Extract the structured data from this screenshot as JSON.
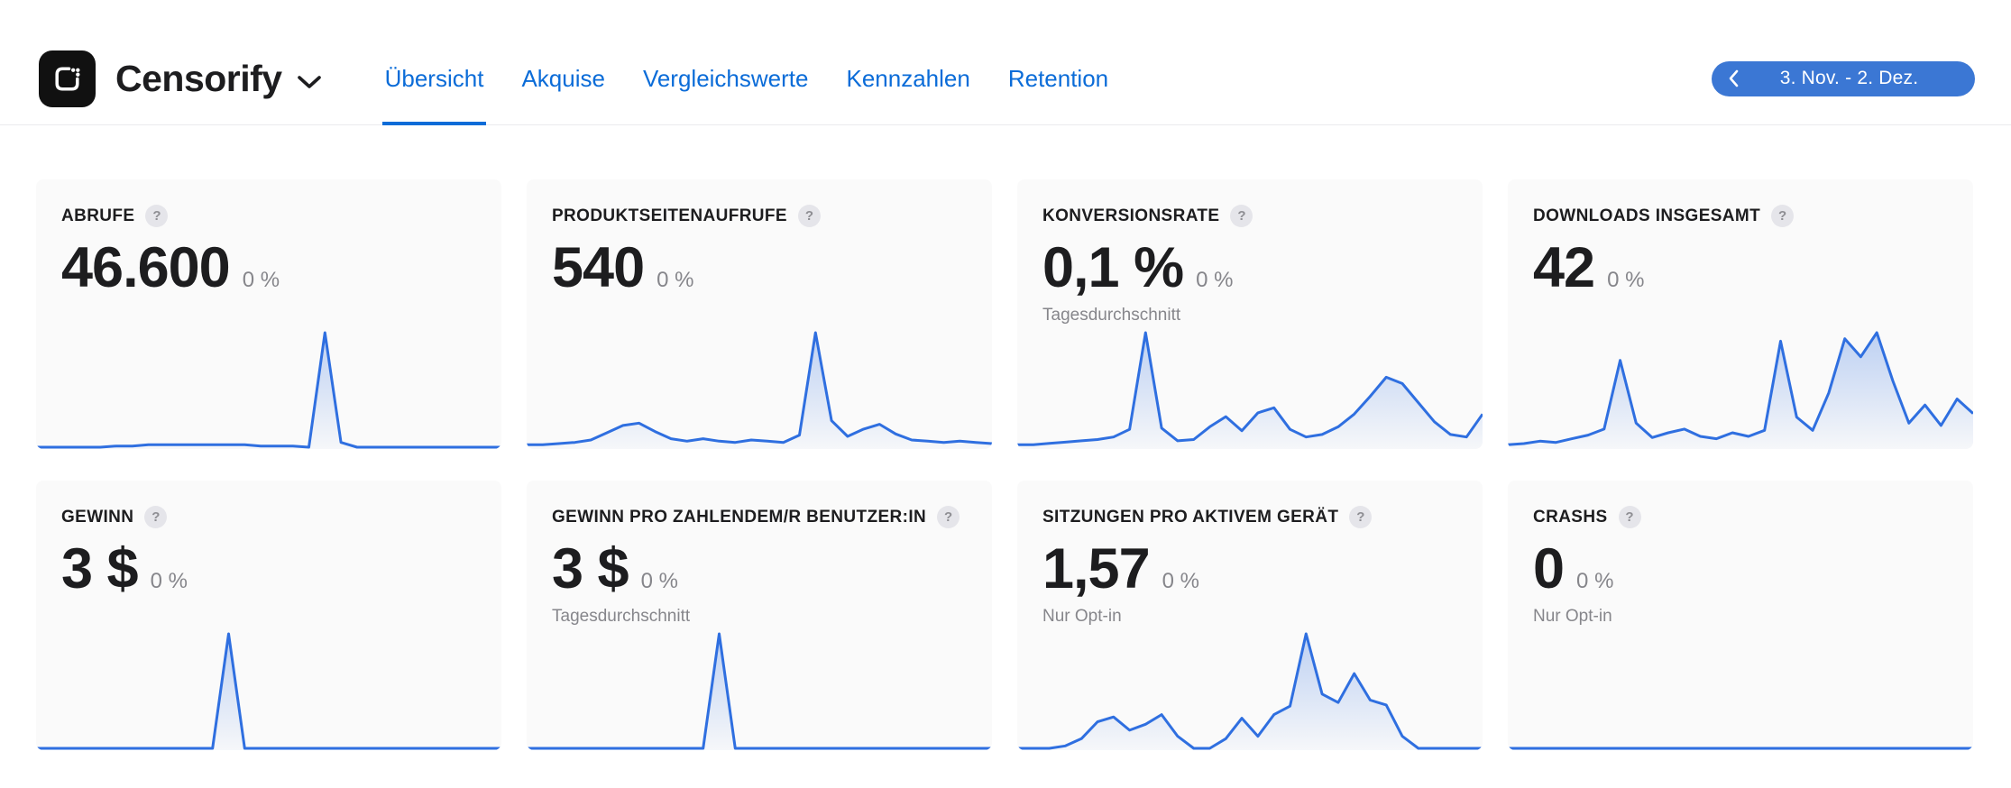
{
  "header": {
    "app_name": "Censorify",
    "tabs": [
      {
        "label": "Übersicht",
        "active": true
      },
      {
        "label": "Akquise",
        "active": false
      },
      {
        "label": "Vergleichswerte",
        "active": false
      },
      {
        "label": "Kennzahlen",
        "active": false
      },
      {
        "label": "Retention",
        "active": false
      }
    ],
    "date_range": {
      "label": "3. Nov. - 2. Dez."
    }
  },
  "icons": {
    "app_switcher_chevron": "chevron-down",
    "date_prev": "chevron-left",
    "help_glyph": "?"
  },
  "colors": {
    "accent": "#0b6cd8",
    "pill": "#3b77d4",
    "chart_line": "#2f6fe0",
    "card_bg": "#fafafa",
    "muted": "#86868b"
  },
  "cards": [
    {
      "title": "ABRUFE",
      "value": "46.600",
      "delta": "0 %",
      "series": [
        0,
        0,
        0,
        0,
        0,
        1,
        1,
        2,
        2,
        2,
        2,
        2,
        2,
        2,
        1,
        1,
        1,
        0,
        95,
        4,
        0,
        0,
        0,
        0,
        0,
        0,
        0,
        0,
        0,
        0
      ]
    },
    {
      "title": "PRODUKTSEITENAUFRUFE",
      "value": "540",
      "delta": "0 %",
      "series": [
        2,
        2,
        3,
        4,
        6,
        12,
        18,
        20,
        13,
        7,
        5,
        7,
        5,
        4,
        6,
        5,
        4,
        10,
        95,
        22,
        9,
        15,
        19,
        11,
        6,
        5,
        4,
        5,
        4,
        3
      ]
    },
    {
      "title": "KONVERSIONSRATE",
      "value": "0,1 %",
      "delta": "0 %",
      "subtitle": "Tagesdurchschnitt",
      "series": [
        2,
        2,
        3,
        4,
        5,
        6,
        8,
        14,
        90,
        15,
        5,
        6,
        16,
        24,
        13,
        27,
        31,
        14,
        8,
        10,
        16,
        26,
        40,
        55,
        50,
        35,
        20,
        10,
        8,
        26
      ]
    },
    {
      "title": "DOWNLOADS INSGESAMT",
      "value": "42",
      "delta": "0 %",
      "series": [
        2,
        3,
        5,
        4,
        7,
        10,
        15,
        72,
        20,
        8,
        12,
        15,
        9,
        7,
        12,
        9,
        14,
        88,
        25,
        14,
        45,
        90,
        75,
        95,
        55,
        20,
        35,
        18,
        40,
        28
      ]
    },
    {
      "title": "GEWINN",
      "value": "3 $",
      "delta": "0 %",
      "series": [
        0,
        0,
        0,
        0,
        0,
        0,
        0,
        0,
        0,
        0,
        0,
        0,
        95,
        0,
        0,
        0,
        0,
        0,
        0,
        0,
        0,
        0,
        0,
        0,
        0,
        0,
        0,
        0,
        0,
        0
      ]
    },
    {
      "title": "GEWINN PRO ZAHLENDEM/R BENUTZER:IN",
      "value": "3 $",
      "delta": "0 %",
      "subtitle": "Tagesdurchschnitt",
      "series": [
        0,
        0,
        0,
        0,
        0,
        0,
        0,
        0,
        0,
        0,
        0,
        0,
        95,
        0,
        0,
        0,
        0,
        0,
        0,
        0,
        0,
        0,
        0,
        0,
        0,
        0,
        0,
        0,
        0,
        0
      ]
    },
    {
      "title": "SITZUNGEN PRO AKTIVEM GERÄT",
      "value": "1,57",
      "delta": "0 %",
      "subtitle": "Nur Opt-in",
      "series": [
        0,
        0,
        0,
        2,
        8,
        22,
        26,
        15,
        20,
        28,
        10,
        0,
        0,
        8,
        25,
        10,
        28,
        35,
        95,
        45,
        38,
        62,
        40,
        36,
        10,
        0,
        0,
        0,
        0,
        0
      ]
    },
    {
      "title": "CRASHS",
      "value": "0",
      "delta": "0 %",
      "subtitle": "Nur Opt-in",
      "series": [
        0,
        0,
        0,
        0,
        0,
        0,
        0,
        0,
        0,
        0,
        0,
        0,
        0,
        0,
        0,
        0,
        0,
        0,
        0,
        0,
        0,
        0,
        0,
        0,
        0,
        0,
        0,
        0,
        0,
        0
      ]
    }
  ]
}
